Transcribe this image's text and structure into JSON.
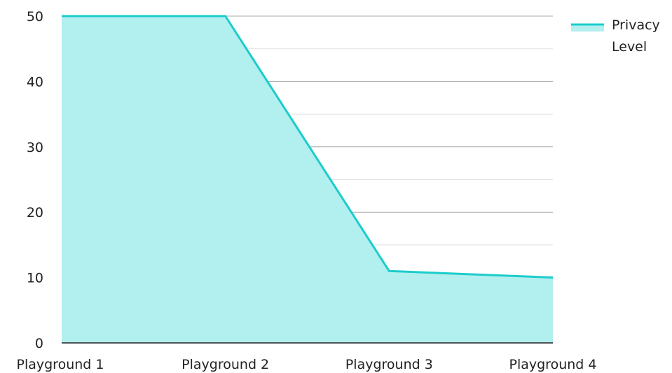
{
  "chart_data": {
    "type": "area",
    "categories": [
      "Playground 1",
      "Playground 2",
      "Playground 3",
      "Playground 4"
    ],
    "series": [
      {
        "name_lines": [
          "Privacy",
          "Level"
        ],
        "values": [
          50,
          50,
          11,
          10
        ]
      }
    ],
    "ylim": [
      0,
      50
    ],
    "y_ticks": [
      "0",
      "10",
      "20",
      "30",
      "40",
      "50"
    ],
    "grid": true,
    "legend_position": "top-right",
    "colors": {
      "line": "#1ccccc",
      "fill": "#b2efef",
      "major_grid": "#a9a9a9",
      "minor_grid": "#e2e2e2",
      "axis": "#222222"
    }
  }
}
